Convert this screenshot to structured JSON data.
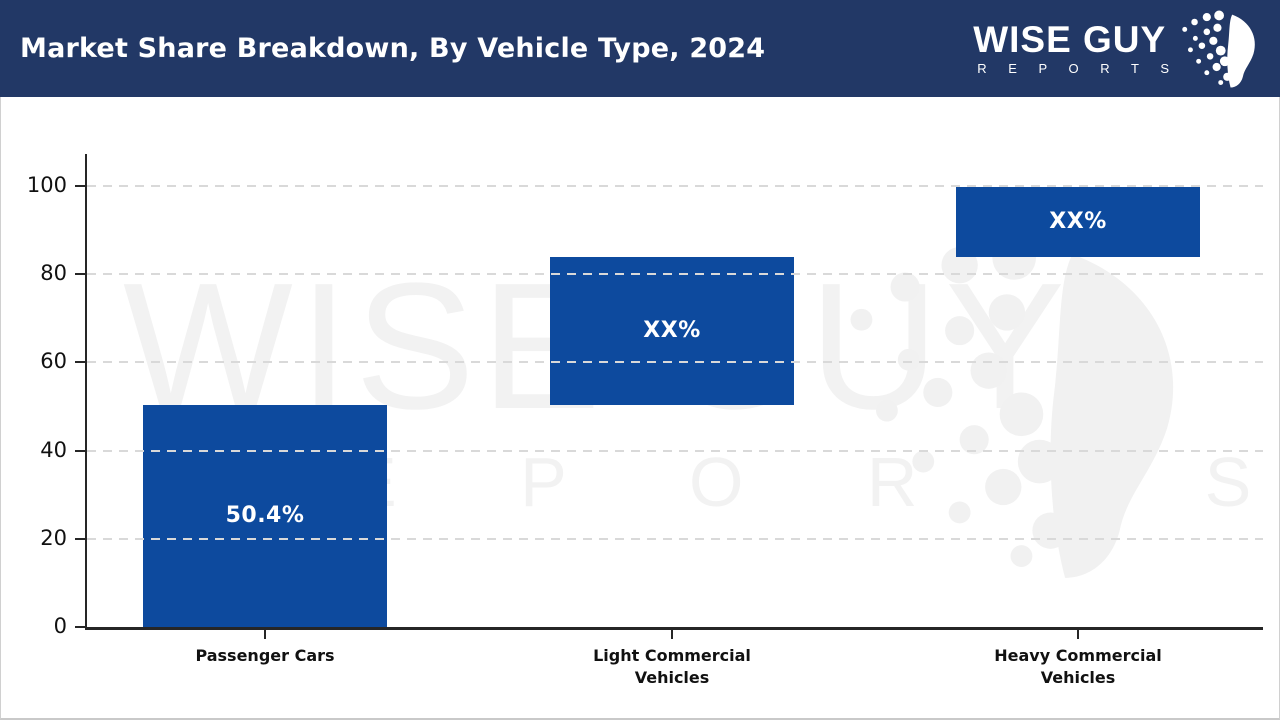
{
  "header": {
    "title": "Market Share Breakdown, By Vehicle Type, 2024",
    "logo": {
      "name": "WISE GUY",
      "tagline": "R E P O R T S"
    }
  },
  "watermark": {
    "primary": "WISE GUY",
    "secondary": "R E P O R T S"
  },
  "chart_data": {
    "type": "bar",
    "subtype": "floating-segment-percentage-breakdown",
    "title": "Market Share Breakdown, By Vehicle Type, 2024",
    "categories": [
      "Passenger Cars",
      "Light Commercial\nVehicles",
      "Heavy Commercial\nVehicles"
    ],
    "series": [
      {
        "name": "Passenger Cars",
        "segment_start": 0,
        "segment_end": 50.4,
        "value": 50.4,
        "label": "50.4%"
      },
      {
        "name": "Light Commercial Vehicles",
        "segment_start": 50.4,
        "segment_end": 84,
        "value": 33.6,
        "label": "XX%"
      },
      {
        "name": "Heavy Commercial Vehicles",
        "segment_start": 84,
        "segment_end": 99.8,
        "value": 15.8,
        "label": "XX%"
      }
    ],
    "yticks": [
      0,
      20,
      40,
      60,
      80,
      100
    ],
    "ytick_labels": [
      "0",
      "20",
      "40",
      "60",
      "80",
      "100"
    ],
    "ylim": [
      0,
      107
    ],
    "xlabel": "",
    "ylabel": "",
    "grid": "horizontal-dashed",
    "legend": "none",
    "colors": {
      "bar": "#0d4a9e",
      "bar_label": "#ffffff",
      "grid_line": "#d9d9d9",
      "axis": "#262626",
      "header_bg": "#223866",
      "header_text": "#ffffff",
      "watermark": "#f2f2f2",
      "tick_text": "#111111"
    }
  }
}
